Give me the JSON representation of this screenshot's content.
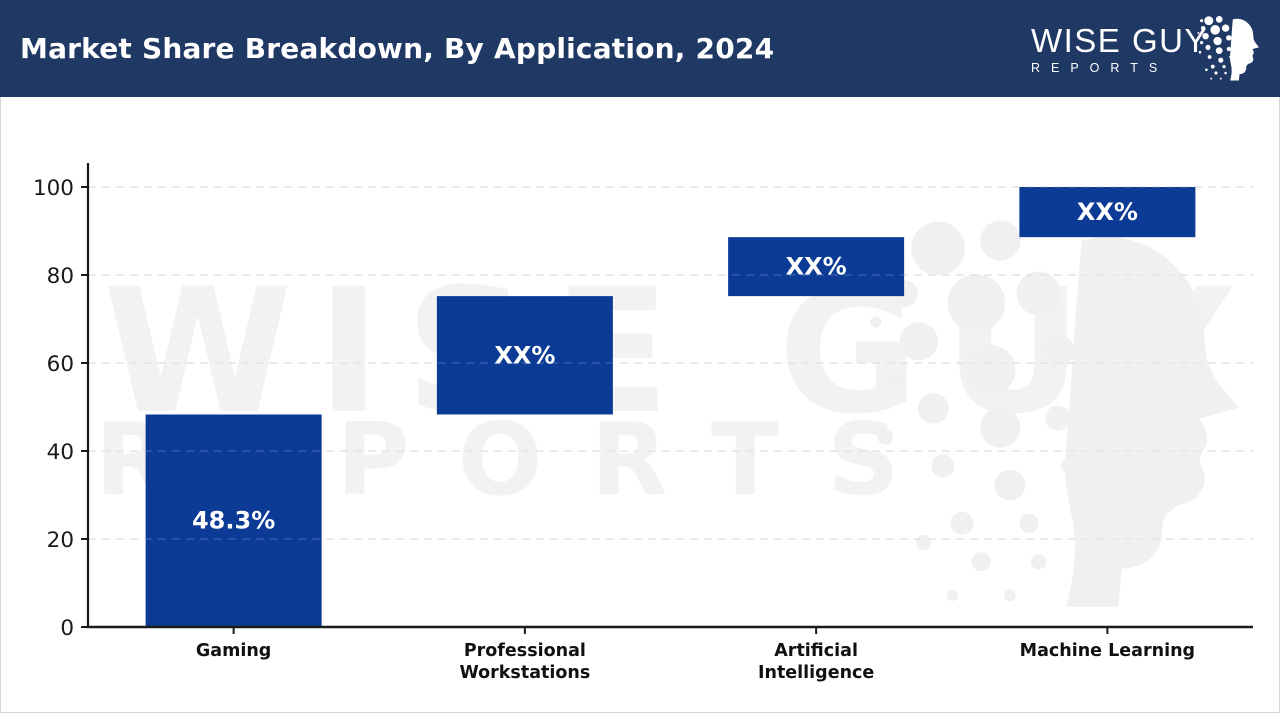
{
  "header": {
    "title": "Market Share Breakdown, By Application, 2024",
    "logo_line1": "WISE GUY",
    "logo_line2": "REPORTS"
  },
  "watermark": {
    "line1": "WISE GUY",
    "line2": "REPORTS"
  },
  "chart_data": {
    "type": "bar",
    "subtype": "floating-waterfall",
    "title": "Market Share Breakdown, By Application, 2024",
    "categories": [
      "Gaming",
      "Professional Workstations",
      "Artificial Intelligence",
      "Machine Learning"
    ],
    "segments": [
      {
        "category": "Gaming",
        "label_lines": [
          "Gaming"
        ],
        "start": 0,
        "end": 48.3,
        "value_label": "48.3%"
      },
      {
        "category": "Professional Workstations",
        "label_lines": [
          "Professional",
          "Workstations"
        ],
        "start": 48.3,
        "end": 75.2,
        "value_label": "XX%"
      },
      {
        "category": "Artificial Intelligence",
        "label_lines": [
          "Artificial",
          "Intelligence"
        ],
        "start": 75.2,
        "end": 88.6,
        "value_label": "XX%"
      },
      {
        "category": "Machine Learning",
        "label_lines": [
          "Machine Learning"
        ],
        "start": 88.6,
        "end": 100,
        "value_label": "XX%"
      }
    ],
    "ylim": [
      0,
      100
    ],
    "yticks": [
      0,
      20,
      40,
      60,
      80,
      100
    ],
    "grid": "horizontal-dashed",
    "legend": "none",
    "bar_color": "#0b3b94",
    "value_label_color": "#ffffff",
    "axis_color": "#1a1a1a",
    "gridline_color": "#e0e0e0",
    "xlabel": "",
    "ylabel": ""
  }
}
